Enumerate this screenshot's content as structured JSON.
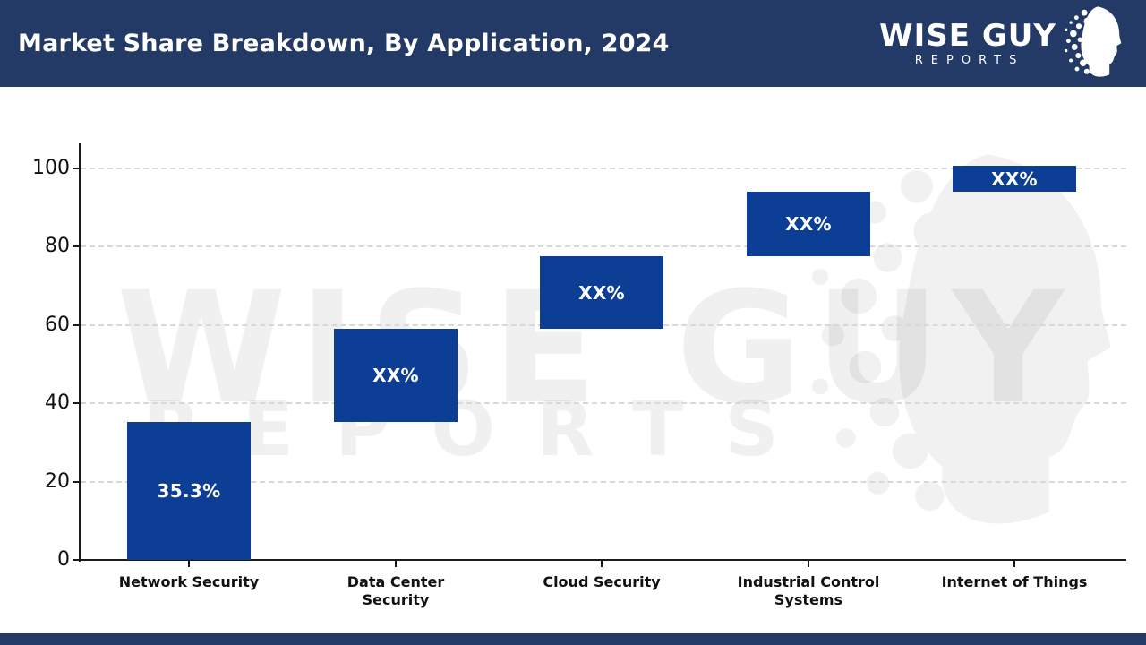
{
  "header": {
    "title": "Market Share Breakdown, By Application, 2024",
    "logo": {
      "name": "WISE GUY",
      "subtitle": "REPORTS"
    }
  },
  "watermark": {
    "line1": "WISE GUY",
    "line2": "REPORTS"
  },
  "colors": {
    "header_bg": "#233966",
    "footer_bg": "#233966",
    "bar": "#0d3e96",
    "grid": "#d8d8d8",
    "axis": "#1a1a1a",
    "bar_label": "#ffffff"
  },
  "chart_data": {
    "type": "bar",
    "subtype": "waterfall",
    "title": "Market Share Breakdown, By Application, 2024",
    "xlabel": "",
    "ylabel": "",
    "ylim": [
      0,
      100
    ],
    "yticks": [
      0,
      20,
      40,
      60,
      80,
      100
    ],
    "grid": true,
    "categories": [
      "Network Security",
      "Data Center\nSecurity",
      "Cloud Security",
      "Industrial Control\nSystems",
      "Internet of Things"
    ],
    "segments": [
      {
        "category": "Network Security",
        "start": 0,
        "end": 35.3,
        "value": 35.3,
        "label": "35.3%"
      },
      {
        "category": "Data Center Security",
        "start": 35.3,
        "end": 59.0,
        "value": 23.7,
        "label": "XX%"
      },
      {
        "category": "Cloud Security",
        "start": 59.0,
        "end": 77.6,
        "value": 18.6,
        "label": "XX%"
      },
      {
        "category": "Industrial Control Systems",
        "start": 77.6,
        "end": 94.0,
        "value": 16.4,
        "label": "XX%"
      },
      {
        "category": "Internet of Things",
        "start": 94.0,
        "end": 100.6,
        "value": 6.6,
        "label": "XX%"
      }
    ]
  }
}
